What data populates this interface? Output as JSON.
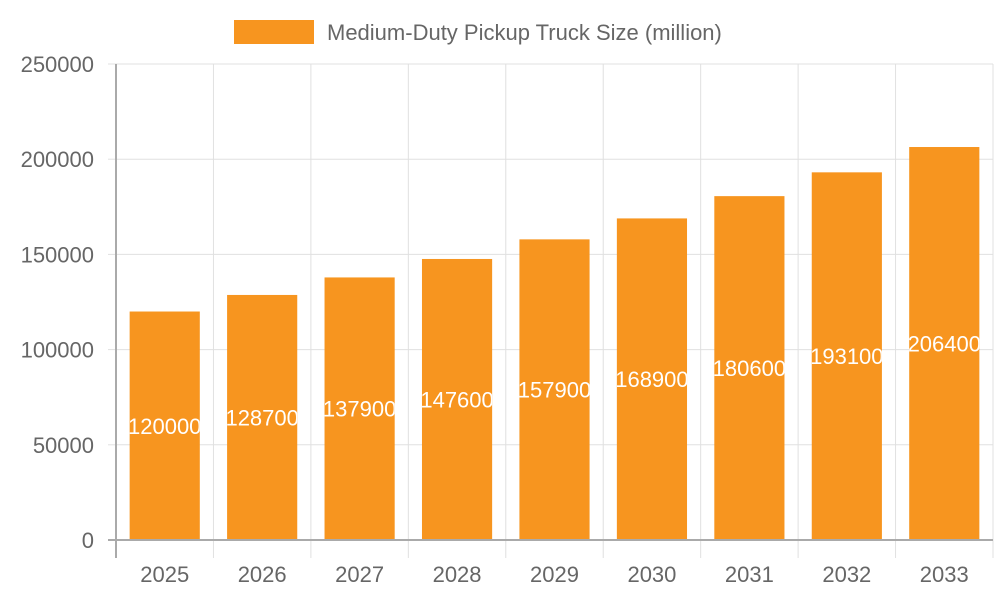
{
  "chart_data": {
    "type": "bar",
    "title": "",
    "xlabel": "",
    "ylabel": "",
    "categories": [
      "2025",
      "2026",
      "2027",
      "2028",
      "2029",
      "2030",
      "2031",
      "2032",
      "2033"
    ],
    "series": [
      {
        "name": "Medium-Duty Pickup Truck Size (million)",
        "values": [
          120000,
          128700,
          137900,
          147600,
          157900,
          168900,
          180600,
          193100,
          206400
        ],
        "color": "#F7951F"
      }
    ],
    "ylim": [
      0,
      250000
    ],
    "yticks": [
      0,
      50000,
      100000,
      150000,
      200000,
      250000
    ],
    "grid": true,
    "legend": "top",
    "data_labels": true,
    "data_label_color": "#ffffff"
  }
}
